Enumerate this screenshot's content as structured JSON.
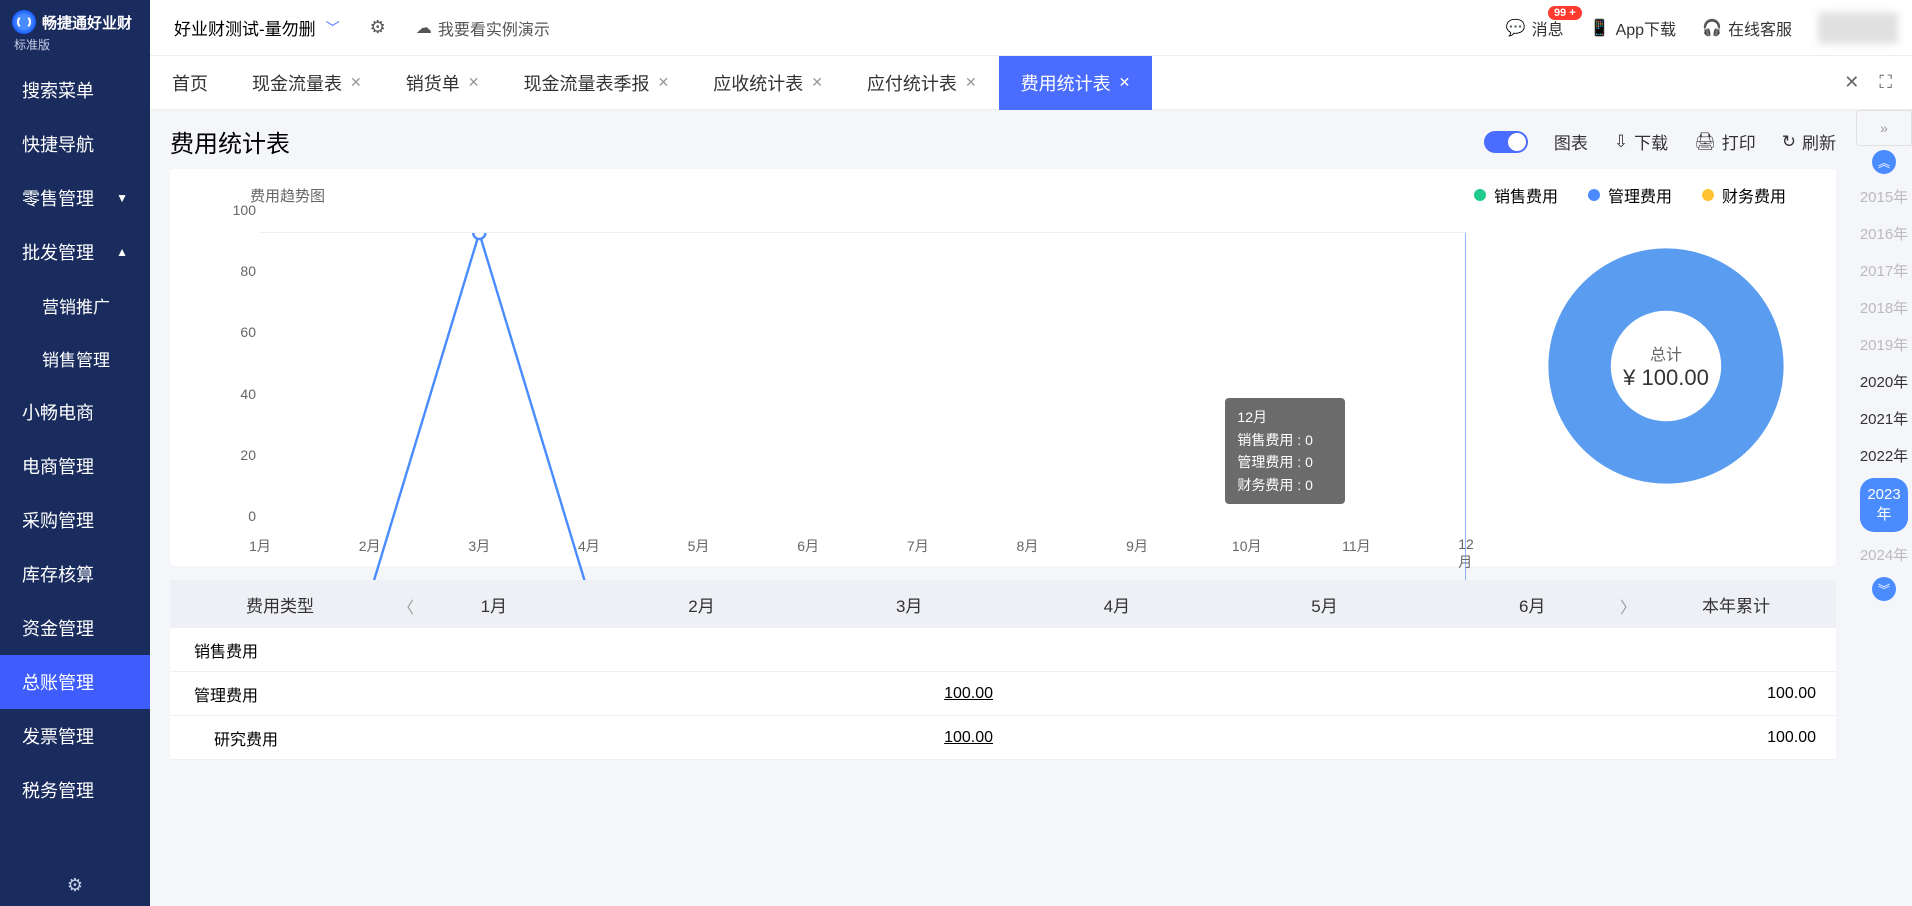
{
  "brand": {
    "name": "畅捷通好业财",
    "edition": "标准版"
  },
  "workspace": {
    "name": "好业财测试-量勿删"
  },
  "topbar": {
    "demo": "我要看实例演示",
    "actions": {
      "msg": "消息",
      "badge": "99 +",
      "app": "App下载",
      "cs": "在线客服"
    }
  },
  "sidebar": {
    "items": [
      {
        "label": "搜索菜单",
        "id": "search"
      },
      {
        "label": "快捷导航",
        "id": "quick"
      },
      {
        "label": "零售管理",
        "id": "retail",
        "expand": "down"
      },
      {
        "label": "批发管理",
        "id": "wholesale",
        "expand": "up"
      },
      {
        "label": "营销推广",
        "id": "marketing",
        "sub": true
      },
      {
        "label": "销售管理",
        "id": "sales",
        "sub": true
      },
      {
        "label": "小畅电商",
        "id": "ecom1"
      },
      {
        "label": "电商管理",
        "id": "ecom2"
      },
      {
        "label": "采购管理",
        "id": "purchase"
      },
      {
        "label": "库存核算",
        "id": "inventory"
      },
      {
        "label": "资金管理",
        "id": "fund"
      },
      {
        "label": "总账管理",
        "id": "gl",
        "active": true
      },
      {
        "label": "发票管理",
        "id": "invoice"
      },
      {
        "label": "税务管理",
        "id": "tax"
      }
    ]
  },
  "tabs": [
    {
      "label": "首页",
      "closable": false
    },
    {
      "label": "现金流量表",
      "closable": true
    },
    {
      "label": "销货单",
      "closable": true
    },
    {
      "label": "现金流量表季报",
      "closable": true
    },
    {
      "label": "应收统计表",
      "closable": true
    },
    {
      "label": "应付统计表",
      "closable": true
    },
    {
      "label": "费用统计表",
      "closable": true,
      "active": true
    }
  ],
  "page": {
    "title": "费用统计表",
    "tools": {
      "chart": "图表",
      "download": "下载",
      "print": "打印",
      "refresh": "刷新"
    }
  },
  "chart": {
    "title": "费用趋势图",
    "legend": [
      {
        "name": "销售费用",
        "color": "#1ecb8c"
      },
      {
        "name": "管理费用",
        "color": "#4a8cff"
      },
      {
        "name": "财务费用",
        "color": "#ffc233"
      }
    ],
    "xlabels": [
      "1月",
      "2月",
      "3月",
      "4月",
      "5月",
      "6月",
      "7月",
      "8月",
      "9月",
      "10月",
      "11月",
      "12月"
    ],
    "yticks": [
      0,
      20,
      40,
      60,
      80,
      100
    ],
    "ylim": [
      0,
      100
    ],
    "series": {
      "sales": [
        0,
        0,
        0,
        0,
        0,
        0,
        0,
        0,
        0,
        0,
        0,
        0
      ],
      "mgmt": [
        0,
        0,
        100,
        0,
        0,
        0,
        0,
        0,
        0,
        0,
        0,
        0
      ],
      "fin": [
        0,
        0,
        0,
        0,
        0,
        0,
        0,
        0,
        0,
        0,
        0,
        0
      ]
    },
    "colors": {
      "sales": "#1ecb8c",
      "mgmt": "#4a8cff",
      "fin": "#ffc233"
    },
    "tooltip": {
      "month": "12月",
      "lines": [
        "销售费用 : 0",
        "管理费用 : 0",
        "财务费用 : 0"
      ],
      "x_index": 11
    }
  },
  "donut": {
    "centerLabel": "总计",
    "centerValue": "¥ 100.00",
    "color": "#5a9cf0",
    "bg": "#ffffff"
  },
  "table": {
    "typeHeader": "费用类型",
    "months": [
      "1月",
      "2月",
      "3月",
      "4月",
      "5月",
      "6月"
    ],
    "totalHeader": "本年累计",
    "rows": [
      {
        "type": "销售费用",
        "vals": [
          "",
          "",
          "",
          "",
          "",
          ""
        ],
        "total": ""
      },
      {
        "type": "管理费用",
        "vals": [
          "",
          "",
          "100.00",
          "",
          "",
          ""
        ],
        "total": "100.00",
        "link3": true
      },
      {
        "type": "研究费用",
        "indent": true,
        "vals": [
          "",
          "",
          "100.00",
          "",
          "",
          ""
        ],
        "total": "100.00",
        "link3": true
      }
    ]
  },
  "years": {
    "list": [
      "2015年",
      "2016年",
      "2017年",
      "2018年",
      "2019年",
      "2020年",
      "2021年",
      "2022年",
      "2023年",
      "2024年"
    ],
    "available": [
      "2020年",
      "2021年",
      "2022年",
      "2023年"
    ],
    "active": "2023年"
  }
}
